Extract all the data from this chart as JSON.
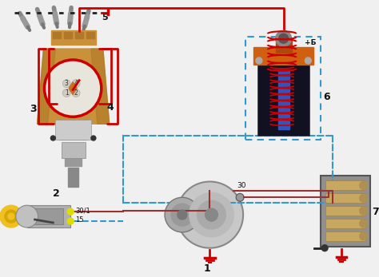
{
  "bg_color": "#f0f0f0",
  "wire_red": "#cc0000",
  "wire_blue_dashed": "#3399cc",
  "wire_brown": "#8B4513",
  "wire_dark": "#222222",
  "distributor_body": "#c8913a",
  "coil_inner_orange": "#d06010",
  "coil_core_red": "#cc2200",
  "coil_core_blue": "#4466cc",
  "key_yellow": "#f0c020",
  "label_color": "#111111",
  "spark_plug_gray": "#aaaaaa"
}
